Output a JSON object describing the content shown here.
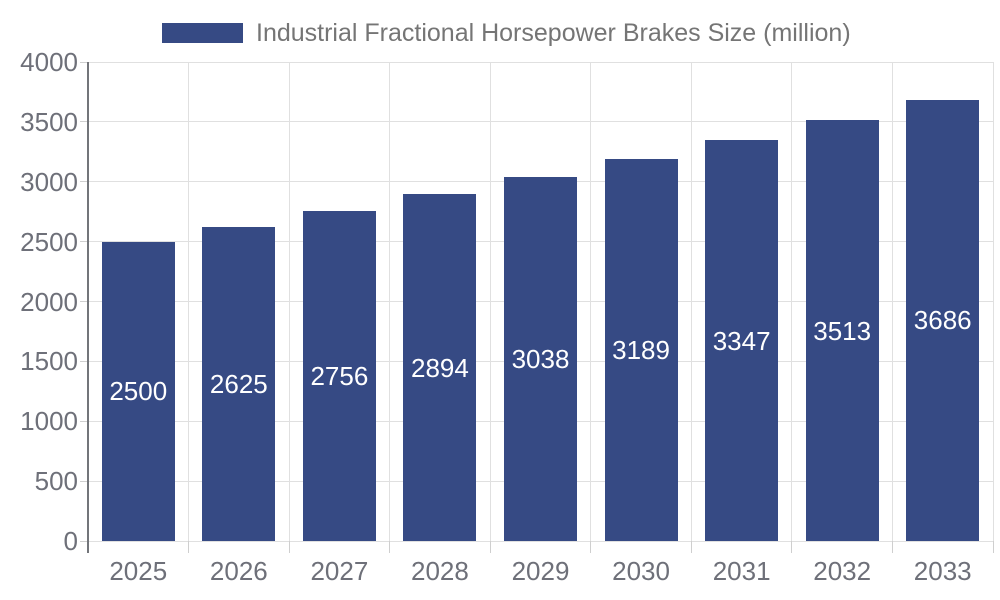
{
  "colors": {
    "bar": "#364A84",
    "legend_text": "#757575",
    "axis_label": "#6E7079",
    "grid_line": "#E0E0E0",
    "axis_line": "#73757A",
    "tick_mark": "#CFCFCF",
    "value_label": "#FFFFFF",
    "background": "#FFFFFF"
  },
  "legend": {
    "label": "Industrial Fractional Horsepower Brakes Size (million)"
  },
  "chart_data": {
    "type": "bar",
    "title": "Industrial Fractional Horsepower Brakes Size (million)",
    "categories": [
      "2025",
      "2026",
      "2027",
      "2028",
      "2029",
      "2030",
      "2031",
      "2032",
      "2033"
    ],
    "values": [
      2500,
      2625,
      2756,
      2894,
      3038,
      3189,
      3347,
      3513,
      3686
    ],
    "series": [
      {
        "name": "Industrial Fractional Horsepower Brakes Size (million)",
        "values": [
          2500,
          2625,
          2756,
          2894,
          3038,
          3189,
          3347,
          3513,
          3686
        ]
      }
    ],
    "xlabel": "",
    "ylabel": "",
    "ylim": [
      0,
      4000
    ],
    "y_ticks": [
      0,
      500,
      1000,
      1500,
      2000,
      2500,
      3000,
      3500,
      4000
    ],
    "y_tick_labels": [
      "0",
      "500",
      "1000",
      "1500",
      "2000",
      "2500",
      "3000",
      "3500",
      "4000"
    ],
    "grid": true,
    "legend_position": "top",
    "value_label_position": "inside-center"
  }
}
